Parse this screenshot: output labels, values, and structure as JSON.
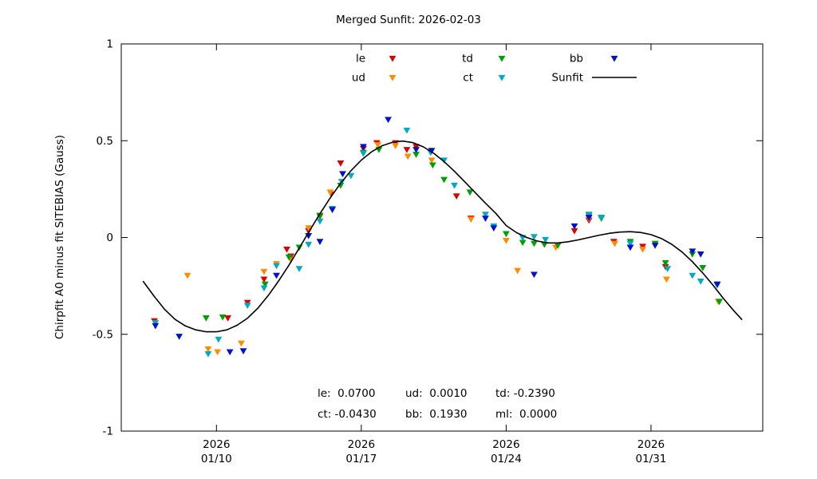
{
  "chart_data": {
    "type": "scatter+line",
    "title": "Merged Sunfit: 2026-02-03",
    "ylabel": "Chirpfit A0 minus fit SITEBIAS (Gauss)",
    "x_encoding": "day number of 2026 (Jan 10 = 10, Feb 1 = 32)",
    "xlim": [
      5.4,
      36.4
    ],
    "ylim": [
      -1,
      1
    ],
    "grid": false,
    "legend_position": "top-center-inside",
    "yticks": [
      {
        "value": 1,
        "label": "1"
      },
      {
        "value": 0.5,
        "label": "0.5"
      },
      {
        "value": 0,
        "label": "0"
      },
      {
        "value": -0.5,
        "label": "-0.5"
      },
      {
        "value": -1,
        "label": "-1"
      }
    ],
    "xticks": [
      {
        "value": 10,
        "line1": "2026",
        "line2": "01/10"
      },
      {
        "value": 17,
        "line1": "2026",
        "line2": "01/17"
      },
      {
        "value": 24,
        "line1": "2026",
        "line2": "01/24"
      },
      {
        "value": 31,
        "line1": "2026",
        "line2": "01/31"
      }
    ],
    "legend": [
      {
        "label": "le",
        "type": "marker",
        "color": "#dd0000",
        "row": 0,
        "col": 0
      },
      {
        "label": "td",
        "type": "marker",
        "color": "#00a000",
        "row": 0,
        "col": 1
      },
      {
        "label": "bb",
        "type": "marker",
        "color": "#0011cc",
        "row": 0,
        "col": 2
      },
      {
        "label": "ud",
        "type": "marker",
        "color": "#ff8c00",
        "row": 1,
        "col": 0
      },
      {
        "label": "ct",
        "type": "marker",
        "color": "#00aac4",
        "row": 1,
        "col": 1
      },
      {
        "label": "Sunfit",
        "type": "line",
        "color": "#000000",
        "row": 1,
        "col": 2
      }
    ],
    "series": [
      {
        "name": "le",
        "color": "#dd0000",
        "marker": "triangle-down",
        "points": [
          [
            7.0,
            -0.43
          ],
          [
            10.55,
            -0.415
          ],
          [
            11.5,
            -0.335
          ],
          [
            12.3,
            -0.215
          ],
          [
            13.4,
            -0.06
          ],
          [
            13.6,
            -0.095
          ],
          [
            14.45,
            0.035
          ],
          [
            15.0,
            0.11
          ],
          [
            15.55,
            0.225
          ],
          [
            16.0,
            0.385
          ],
          [
            17.1,
            0.46
          ],
          [
            17.75,
            0.49
          ],
          [
            18.65,
            0.49
          ],
          [
            19.2,
            0.455
          ],
          [
            19.65,
            0.47
          ],
          [
            21.6,
            0.215
          ],
          [
            22.3,
            0.1
          ],
          [
            27.3,
            0.035
          ],
          [
            28.0,
            0.09
          ],
          [
            29.2,
            -0.02
          ],
          [
            30.6,
            -0.045
          ],
          [
            31.7,
            -0.15
          ]
        ]
      },
      {
        "name": "ud",
        "color": "#ff8c00",
        "marker": "triangle-down",
        "points": [
          [
            8.6,
            -0.195
          ],
          [
            9.6,
            -0.575
          ],
          [
            10.05,
            -0.59
          ],
          [
            11.2,
            -0.545
          ],
          [
            12.3,
            -0.175
          ],
          [
            12.9,
            -0.135
          ],
          [
            13.6,
            -0.115
          ],
          [
            14.45,
            0.05
          ],
          [
            15.5,
            0.235
          ],
          [
            17.8,
            0.48
          ],
          [
            18.65,
            0.475
          ],
          [
            19.25,
            0.42
          ],
          [
            20.4,
            0.4
          ],
          [
            22.3,
            0.095
          ],
          [
            24.0,
            -0.015
          ],
          [
            24.55,
            -0.17
          ],
          [
            26.4,
            -0.05
          ],
          [
            28.0,
            0.1
          ],
          [
            29.25,
            -0.03
          ],
          [
            30.6,
            -0.06
          ],
          [
            31.75,
            -0.215
          ],
          [
            34.25,
            -0.33
          ]
        ]
      },
      {
        "name": "td",
        "color": "#00a000",
        "marker": "triangle-down",
        "points": [
          [
            9.5,
            -0.415
          ],
          [
            10.3,
            -0.41
          ],
          [
            12.35,
            -0.24
          ],
          [
            13.5,
            -0.1
          ],
          [
            14.0,
            -0.05
          ],
          [
            15.0,
            0.115
          ],
          [
            16.0,
            0.27
          ],
          [
            17.1,
            0.44
          ],
          [
            17.85,
            0.455
          ],
          [
            19.65,
            0.43
          ],
          [
            20.45,
            0.375
          ],
          [
            21.0,
            0.3
          ],
          [
            22.25,
            0.235
          ],
          [
            24.0,
            0.02
          ],
          [
            24.8,
            -0.025
          ],
          [
            25.35,
            -0.03
          ],
          [
            25.85,
            -0.035
          ],
          [
            26.5,
            -0.04
          ],
          [
            28.0,
            0.115
          ],
          [
            28.6,
            0.1
          ],
          [
            30.0,
            -0.02
          ],
          [
            31.2,
            -0.03
          ],
          [
            31.7,
            -0.13
          ],
          [
            33.0,
            -0.085
          ],
          [
            33.5,
            -0.155
          ],
          [
            34.3,
            -0.33
          ]
        ]
      },
      {
        "name": "ct",
        "color": "#00aac4",
        "marker": "triangle-down",
        "points": [
          [
            7.05,
            -0.44
          ],
          [
            9.6,
            -0.6
          ],
          [
            10.1,
            -0.525
          ],
          [
            11.5,
            -0.35
          ],
          [
            12.3,
            -0.26
          ],
          [
            12.9,
            -0.145
          ],
          [
            14.0,
            -0.16
          ],
          [
            14.45,
            -0.035
          ],
          [
            15.0,
            0.085
          ],
          [
            15.6,
            0.15
          ],
          [
            16.05,
            0.29
          ],
          [
            16.5,
            0.32
          ],
          [
            17.1,
            0.435
          ],
          [
            19.2,
            0.555
          ],
          [
            20.35,
            0.44
          ],
          [
            21.0,
            0.4
          ],
          [
            21.5,
            0.27
          ],
          [
            23.0,
            0.12
          ],
          [
            23.4,
            0.06
          ],
          [
            24.8,
            0.0
          ],
          [
            25.35,
            0.005
          ],
          [
            25.9,
            -0.01
          ],
          [
            28.0,
            0.12
          ],
          [
            28.6,
            0.105
          ],
          [
            30.0,
            -0.03
          ],
          [
            31.8,
            -0.16
          ],
          [
            33.0,
            -0.195
          ],
          [
            33.4,
            -0.225
          ],
          [
            34.2,
            -0.245
          ]
        ]
      },
      {
        "name": "bb",
        "color": "#0011cc",
        "marker": "triangle-down",
        "points": [
          [
            7.05,
            -0.455
          ],
          [
            8.2,
            -0.51
          ],
          [
            10.65,
            -0.59
          ],
          [
            11.3,
            -0.585
          ],
          [
            12.9,
            -0.195
          ],
          [
            14.45,
            0.01
          ],
          [
            15.0,
            -0.02
          ],
          [
            15.6,
            0.145
          ],
          [
            16.1,
            0.33
          ],
          [
            17.1,
            0.47
          ],
          [
            18.3,
            0.61
          ],
          [
            19.65,
            0.455
          ],
          [
            20.4,
            0.45
          ],
          [
            23.0,
            0.1
          ],
          [
            23.4,
            0.05
          ],
          [
            25.35,
            -0.19
          ],
          [
            27.3,
            0.06
          ],
          [
            28.0,
            0.105
          ],
          [
            30.0,
            -0.05
          ],
          [
            31.2,
            -0.04
          ],
          [
            33.0,
            -0.07
          ],
          [
            33.4,
            -0.085
          ],
          [
            34.2,
            -0.24
          ]
        ]
      }
    ],
    "fit": {
      "name": "Sunfit",
      "color": "#000000",
      "points": [
        [
          6.45,
          -0.225
        ],
        [
          7,
          -0.305
        ],
        [
          7.5,
          -0.372
        ],
        [
          8,
          -0.423
        ],
        [
          8.5,
          -0.457
        ],
        [
          9,
          -0.477
        ],
        [
          9.5,
          -0.487
        ],
        [
          10,
          -0.487
        ],
        [
          10.5,
          -0.477
        ],
        [
          11,
          -0.453
        ],
        [
          11.5,
          -0.417
        ],
        [
          12,
          -0.365
        ],
        [
          12.5,
          -0.3
        ],
        [
          13,
          -0.225
        ],
        [
          13.5,
          -0.143
        ],
        [
          14,
          -0.055
        ],
        [
          14.5,
          0.035
        ],
        [
          15,
          0.123
        ],
        [
          15.5,
          0.205
        ],
        [
          16,
          0.28
        ],
        [
          16.5,
          0.345
        ],
        [
          17,
          0.4
        ],
        [
          17.5,
          0.443
        ],
        [
          18,
          0.474
        ],
        [
          18.5,
          0.492
        ],
        [
          19,
          0.498
        ],
        [
          19.5,
          0.49
        ],
        [
          20,
          0.468
        ],
        [
          20.5,
          0.435
        ],
        [
          21,
          0.392
        ],
        [
          21.5,
          0.342
        ],
        [
          22,
          0.288
        ],
        [
          22.5,
          0.232
        ],
        [
          23,
          0.177
        ],
        [
          23.5,
          0.125
        ],
        [
          24,
          0.062
        ],
        [
          24.5,
          0.025
        ],
        [
          25,
          0.0
        ],
        [
          25.5,
          -0.018
        ],
        [
          26,
          -0.028
        ],
        [
          26.5,
          -0.028
        ],
        [
          27,
          -0.022
        ],
        [
          27.5,
          -0.012
        ],
        [
          28,
          0.0
        ],
        [
          28.5,
          0.012
        ],
        [
          29,
          0.022
        ],
        [
          29.5,
          0.028
        ],
        [
          30,
          0.03
        ],
        [
          30.5,
          0.026
        ],
        [
          31,
          0.015
        ],
        [
          31.5,
          -0.005
        ],
        [
          32,
          -0.035
        ],
        [
          32.5,
          -0.075
        ],
        [
          33,
          -0.125
        ],
        [
          33.5,
          -0.183
        ],
        [
          34,
          -0.247
        ],
        [
          34.5,
          -0.315
        ],
        [
          35,
          -0.378
        ],
        [
          35.4,
          -0.425
        ]
      ]
    },
    "stats": {
      "rows": [
        [
          "le:  0.0700",
          "ud:  0.0010",
          "td: -0.2390"
        ],
        [
          "ct: -0.0430",
          "bb:  0.1930",
          "ml:  0.0000"
        ]
      ]
    }
  }
}
